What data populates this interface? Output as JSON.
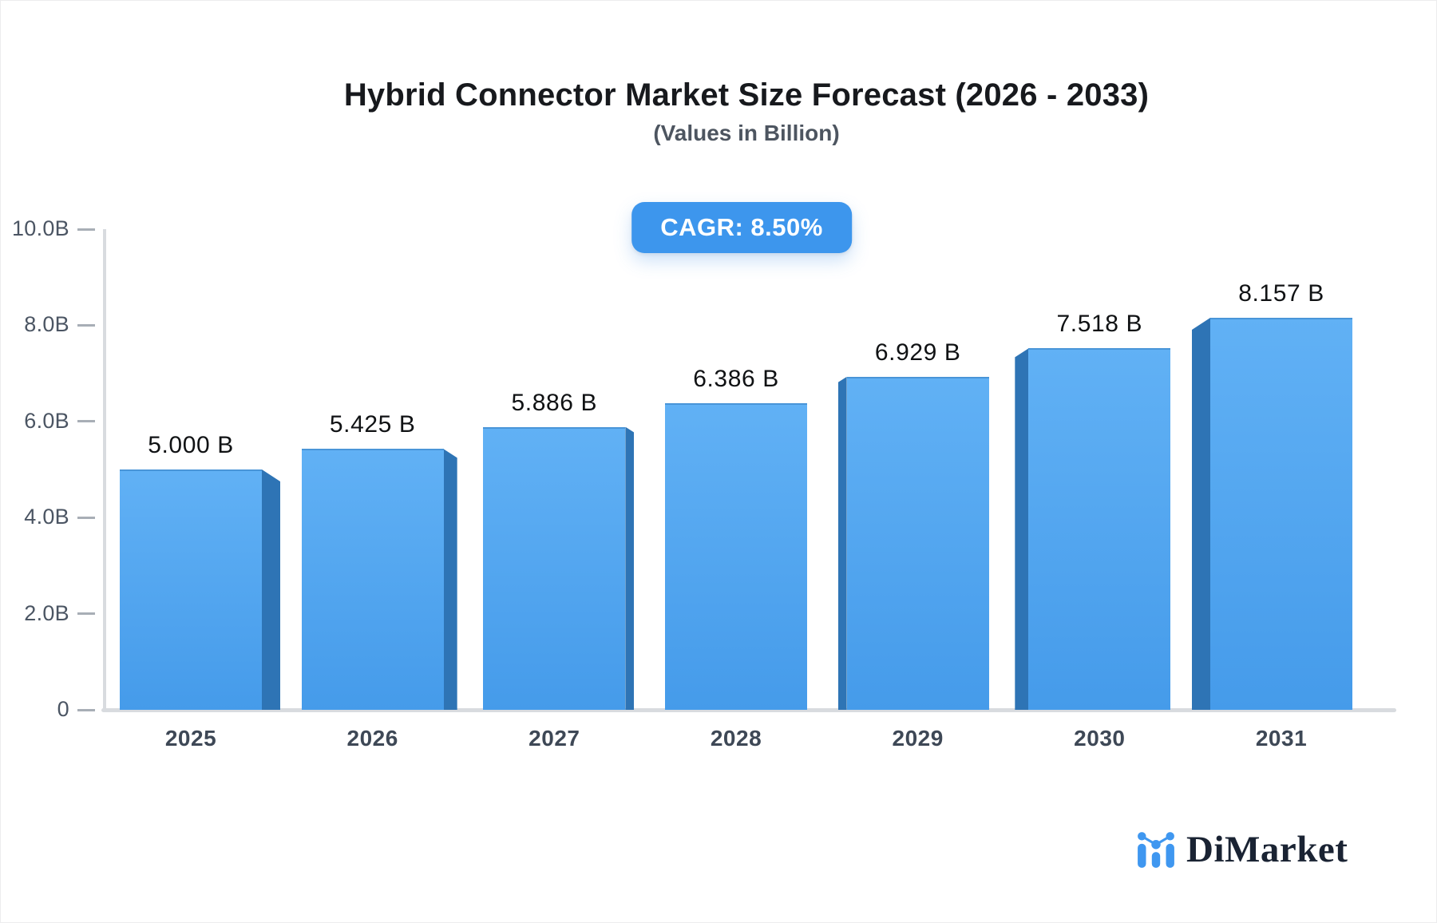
{
  "header": {
    "title": "Hybrid Connector Market Size Forecast (2026 - 2033)",
    "subtitle": "(Values in Billion)"
  },
  "badge": {
    "label": "CAGR: 8.50%"
  },
  "chart_data": {
    "type": "bar",
    "title": "Hybrid Connector Market Size Forecast (2026 - 2033)",
    "subtitle": "(Values in Billion)",
    "categories": [
      "2025",
      "2026",
      "2027",
      "2028",
      "2029",
      "2030",
      "2031"
    ],
    "values": [
      5.0,
      5.425,
      5.886,
      6.386,
      6.929,
      7.518,
      8.157
    ],
    "value_labels": [
      "5.000 B",
      "5.425 B",
      "5.886 B",
      "6.386 B",
      "6.929 B",
      "7.518 B",
      "8.157 B"
    ],
    "xlabel": "",
    "ylabel": "",
    "ylim": [
      0,
      10
    ],
    "grid": false,
    "legend": false,
    "yticks": [
      {
        "value": 0,
        "label": "0"
      },
      {
        "value": 2,
        "label": "2.0B"
      },
      {
        "value": 4,
        "label": "4.0B"
      },
      {
        "value": 6,
        "label": "6.0B"
      },
      {
        "value": 8,
        "label": "8.0B"
      },
      {
        "value": 10,
        "label": "10.0B"
      }
    ],
    "bar_color_top": "#61B1F5",
    "bar_color_bottom": "#459BEA",
    "bar_side_color": "#2E74B5",
    "cagr": "8.50%"
  },
  "colors": {
    "badge_bg": "#3D96ED",
    "axis": "#d8dbdf",
    "tick": "#a8aeb6",
    "logo_navy": "#1a2333",
    "logo_blue": "#3F97F0"
  },
  "logo": {
    "text": "DiMarket",
    "icon": "bar-chart-icon"
  }
}
